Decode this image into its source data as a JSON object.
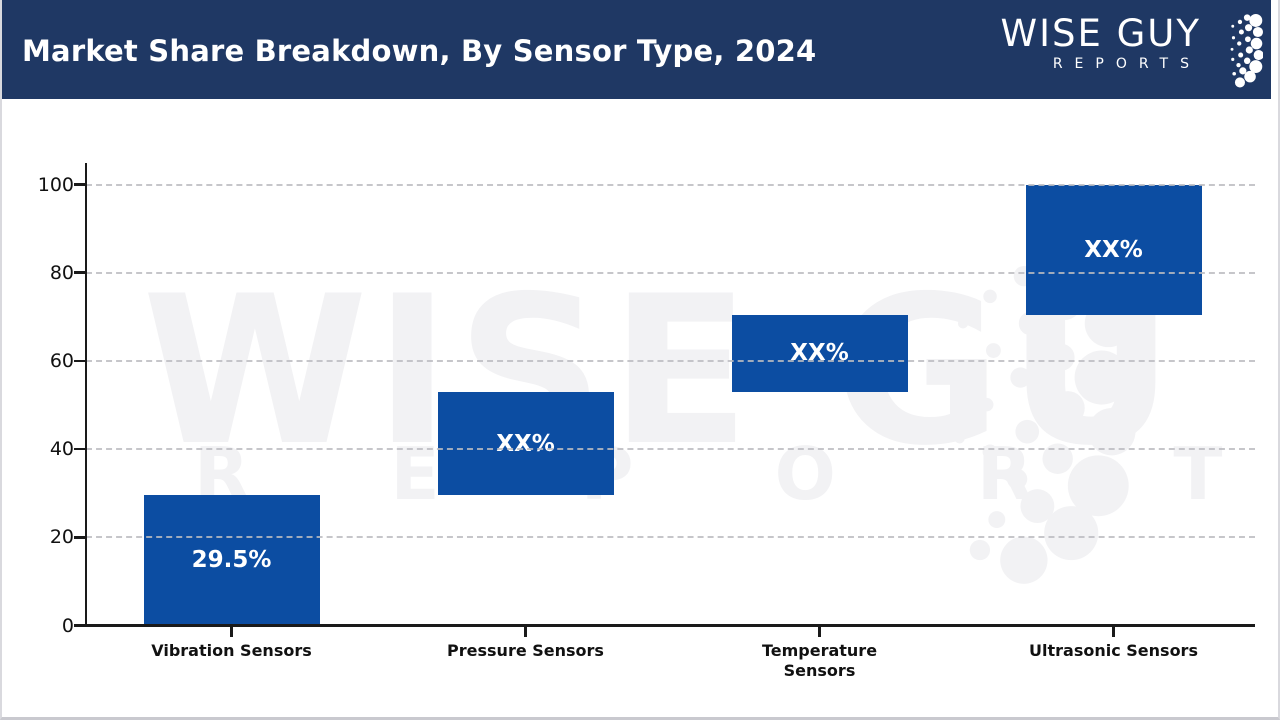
{
  "header": {
    "title": "Market Share Breakdown, By Sensor Type, 2024",
    "logo": {
      "line1": "WISE GUY",
      "line2": "REPORTS"
    }
  },
  "watermark": {
    "line1": "WISE GU",
    "line2": "R E P O R T S"
  },
  "colors": {
    "header_bg": "#1f3864",
    "bar": "#0c4da2",
    "bar_label": "#ffffff",
    "axis": "#1a1a1a",
    "grid": "#bcbcc1",
    "watermark": "#f2f2f4"
  },
  "chart_data": {
    "type": "bar",
    "subtype": "floating-waterfall",
    "title": "Market Share Breakdown, By Sensor Type, 2024",
    "categories": [
      "Vibration Sensors",
      "Pressure Sensors",
      "Temperature\nSensors",
      "Ultrasonic Sensors"
    ],
    "bars": [
      {
        "category": "Vibration Sensors",
        "from": 0,
        "to": 29.5,
        "label": "29.5%"
      },
      {
        "category": "Pressure Sensors",
        "from": 29.5,
        "to": 53,
        "label": "XX%"
      },
      {
        "category": "Temperature Sensors",
        "from": 53,
        "to": 70.5,
        "label": "XX%"
      },
      {
        "category": "Ultrasonic Sensors",
        "from": 70.5,
        "to": 100,
        "label": "XX%"
      }
    ],
    "xlabel": "",
    "ylabel": "",
    "ylim": [
      0,
      100
    ],
    "yticks": [
      0,
      20,
      40,
      60,
      80,
      100
    ],
    "grid": "horizontal-dashed",
    "legend": "none",
    "bar_color": "#0c4da2",
    "value_label_color": "#ffffff"
  }
}
